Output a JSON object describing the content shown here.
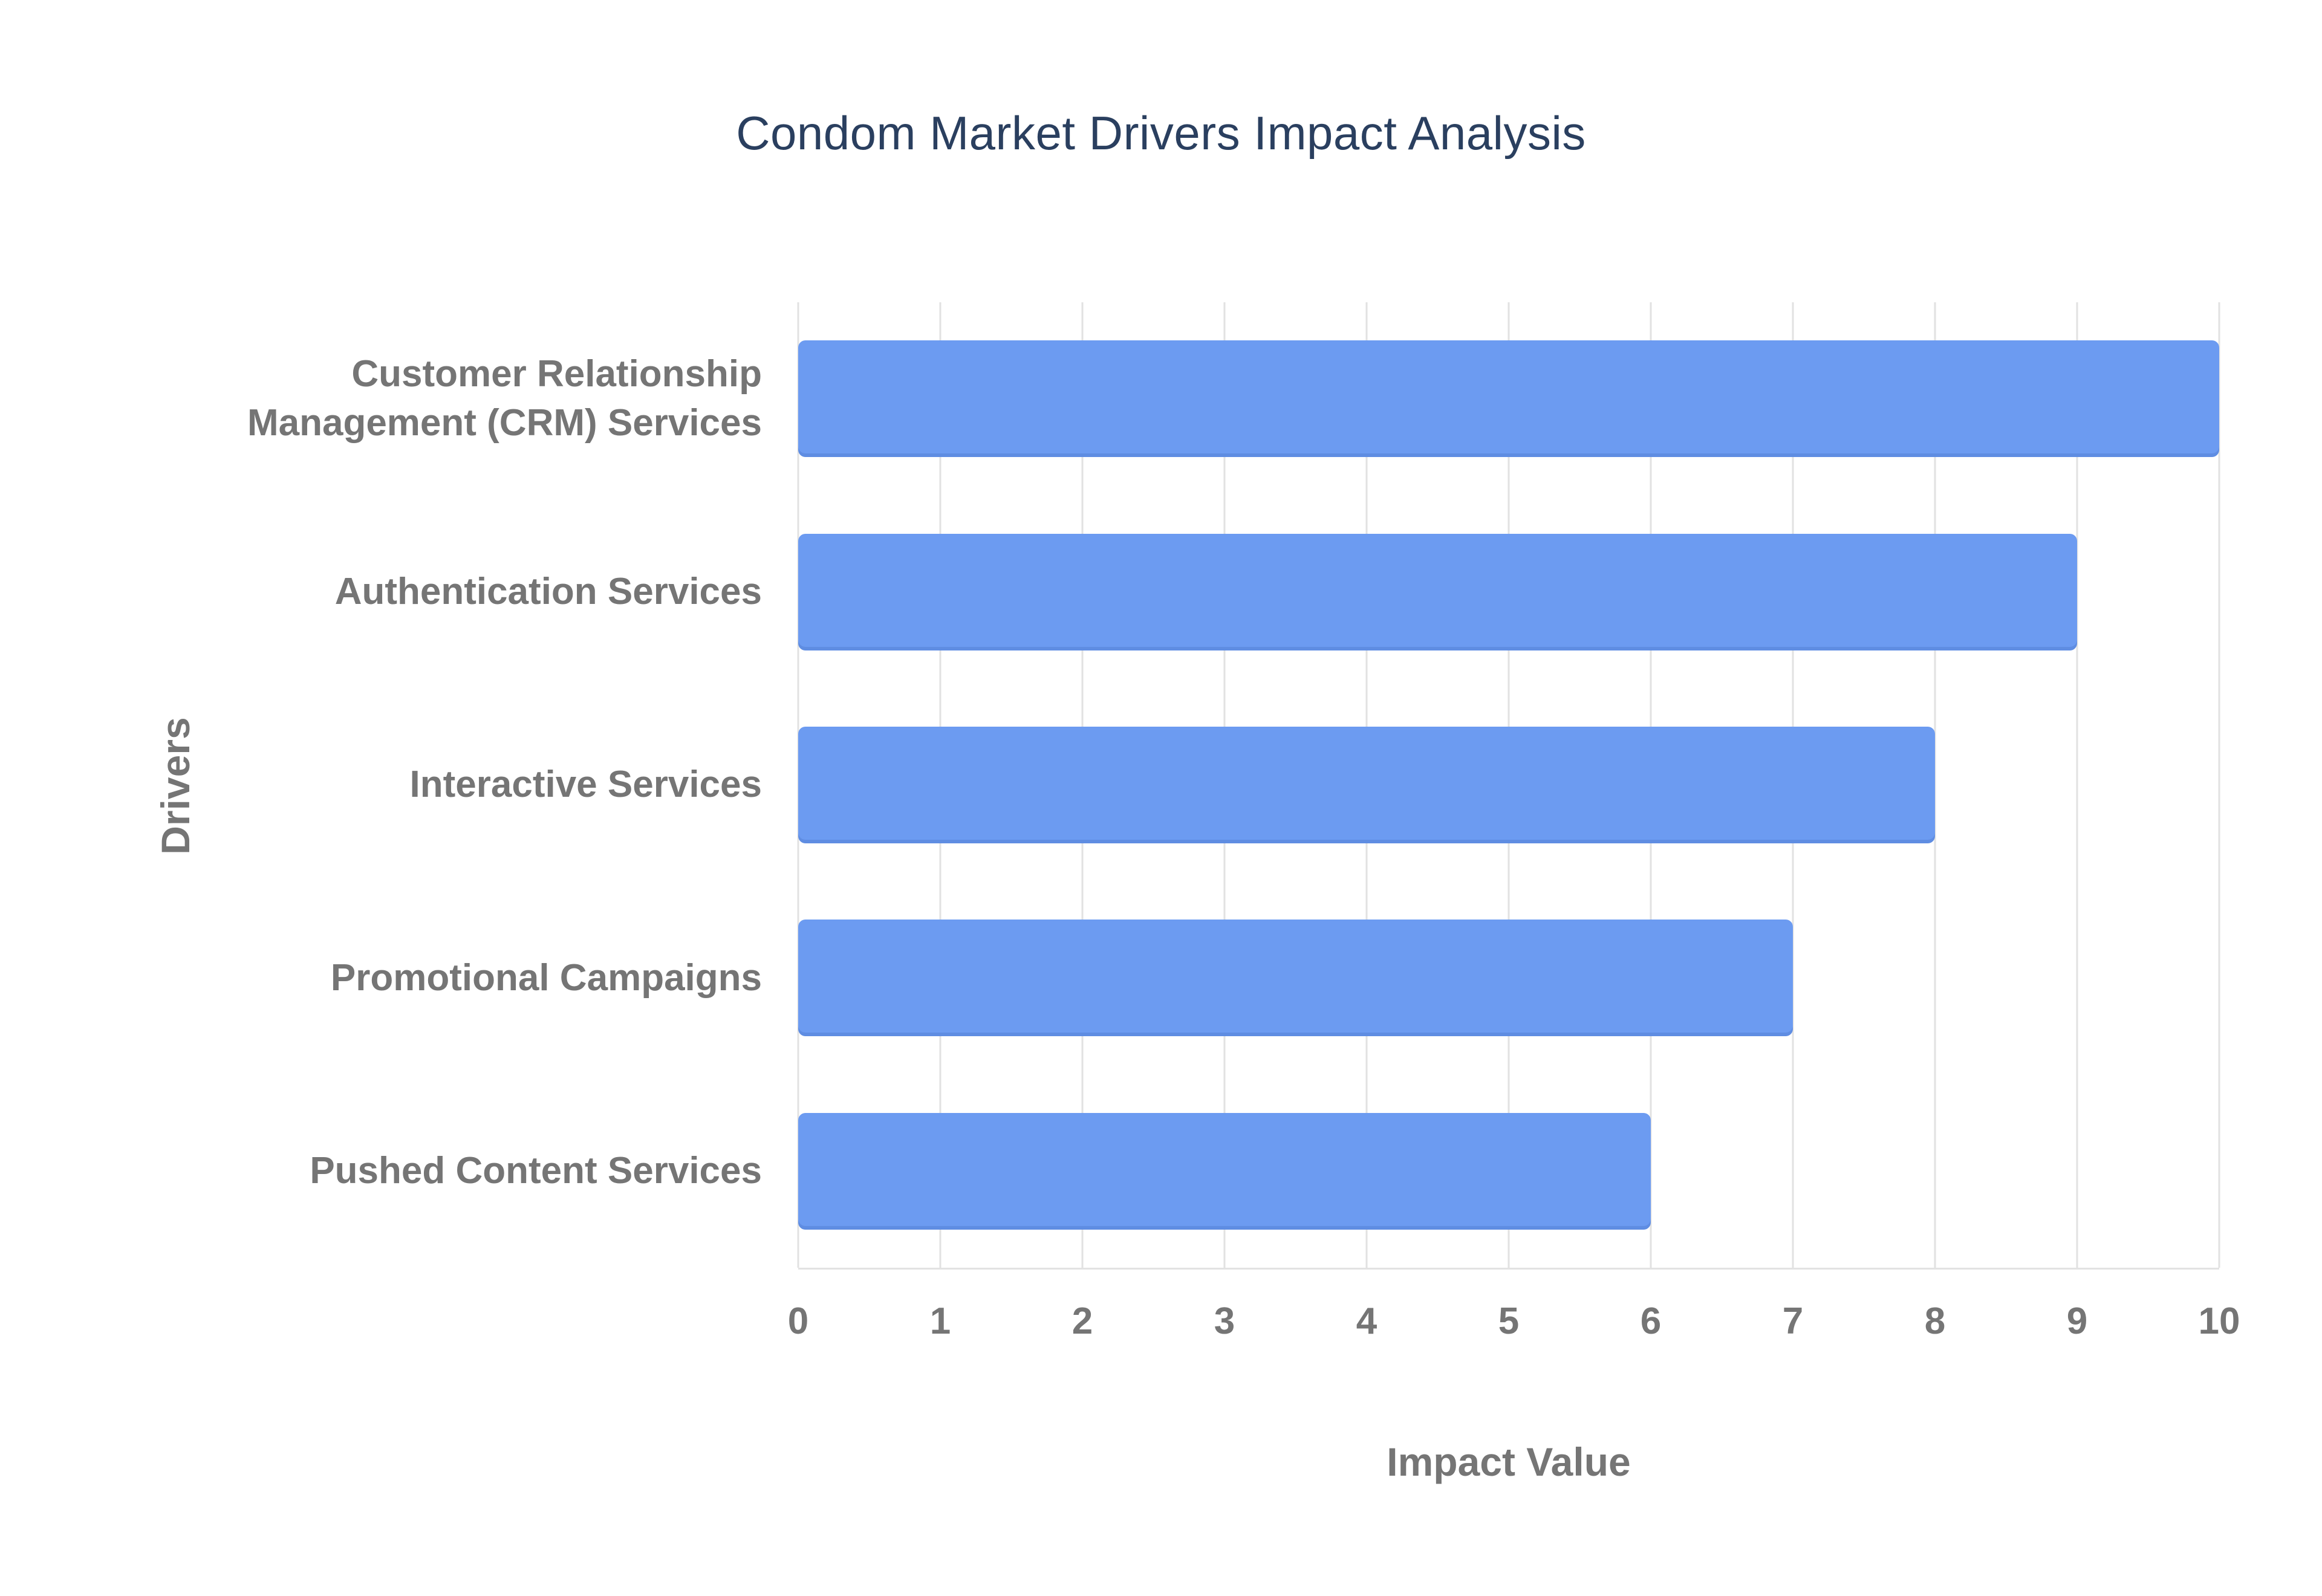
{
  "chart_data": {
    "type": "bar",
    "orientation": "horizontal",
    "title": "Condom Market Drivers Impact Analysis",
    "xlabel": "Impact Value",
    "ylabel": "Drivers",
    "categories": [
      "Customer Relationship Management (CRM) Services",
      "Authentication Services",
      "Interactive Services",
      "Promotional Campaigns",
      "Pushed Content Services"
    ],
    "values": [
      10,
      9,
      8,
      7,
      6
    ],
    "xlim": [
      0,
      10
    ],
    "xticks": [
      0,
      1,
      2,
      3,
      4,
      5,
      6,
      7,
      8,
      9,
      10
    ],
    "grid": "vertical",
    "legend": "none",
    "colors": {
      "bar": "#6C9BF1",
      "title": "#2a3f5f",
      "axis_text": "#757575",
      "gridline": "#e2e2e2",
      "background": "#ffffff"
    }
  }
}
